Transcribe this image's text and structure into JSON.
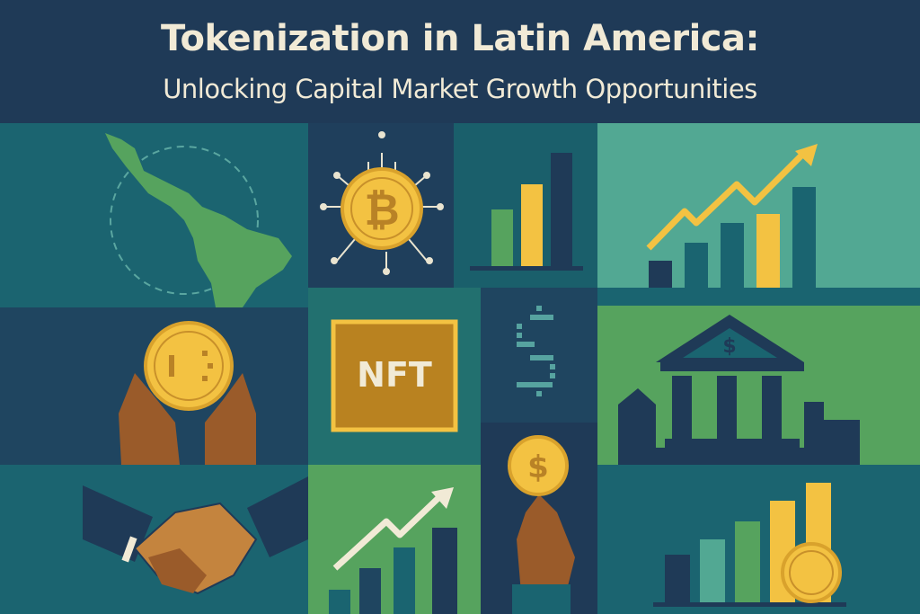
{
  "header": {
    "title": "Tokenization in Latin America:",
    "subtitle": "Unlocking Capital Market Growth Opportunities"
  },
  "tiles": {
    "nft_label": "NFT",
    "bank_symbol": "$",
    "coin_symbol": "$"
  },
  "colors": {
    "navy": "#1f3a57",
    "teal": "#1b6470",
    "light_teal": "#52a893",
    "green": "#56a35e",
    "gold": "#f3c242",
    "skin": "#9a5b2a",
    "cream": "#f1ead6"
  }
}
